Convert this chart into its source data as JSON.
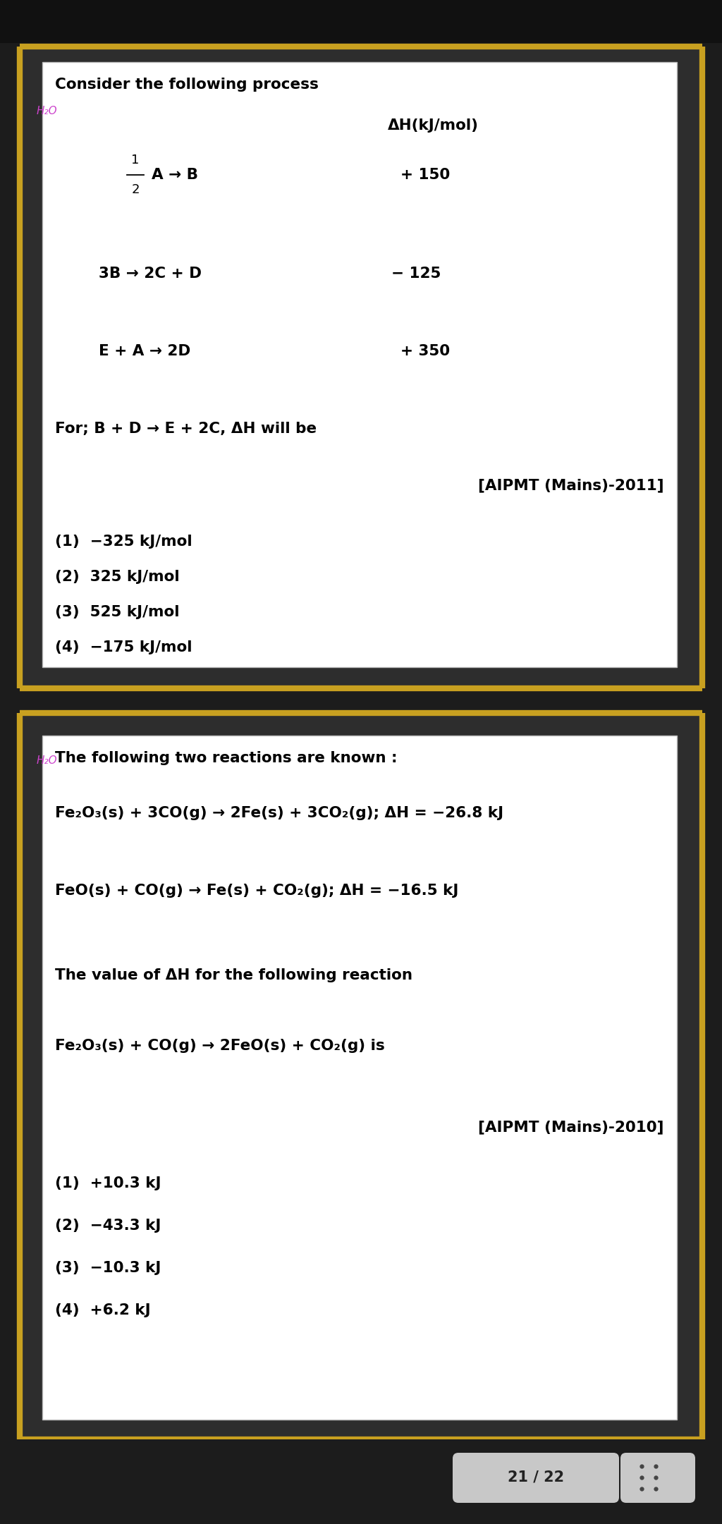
{
  "bg_color": "#1c1c1c",
  "card_bg": "#ffffff",
  "gold_color": "#c8a020",
  "dark_panel_color": "#2d2d2d",
  "fig_width": 10.24,
  "fig_height": 21.61,
  "panel1": {
    "title": "Consider the following process",
    "col_header": "ΔH(kJ/mol)",
    "question": "For; B + D → E + 2C, ΔH will be",
    "source": "[AIPMT (Mains)-2011]",
    "options": [
      "(1)  −325 kJ/mol",
      "(2)  325 kJ/mol",
      "(3)  525 kJ/mol",
      "(4)  −175 kJ/mol"
    ],
    "annotation_color": "#cc44cc"
  },
  "panel2": {
    "intro": "The following two reactions are known :",
    "rxn1": "Fe₂O₃(s) + 3CO(g) → 2Fe(s) + 3CO₂(g); ΔH = −26.8 kJ",
    "rxn2": "FeO(s) + CO(g) → Fe(s) + CO₂(g); ΔH = −16.5 kJ",
    "question": "The value of ΔH for the following reaction",
    "rxn3": "Fe₂O₃(s) + CO(g) → 2FeO(s) + CO₂(g) is",
    "source": "[AIPMT (Mains)-2010]",
    "options": [
      "(1)  +10.3 kJ",
      "(2)  −43.3 kJ",
      "(3)  −10.3 kJ",
      "(4)  +6.2 kJ"
    ],
    "annotation_color": "#cc44cc"
  },
  "page_indicator": "21 / 22"
}
